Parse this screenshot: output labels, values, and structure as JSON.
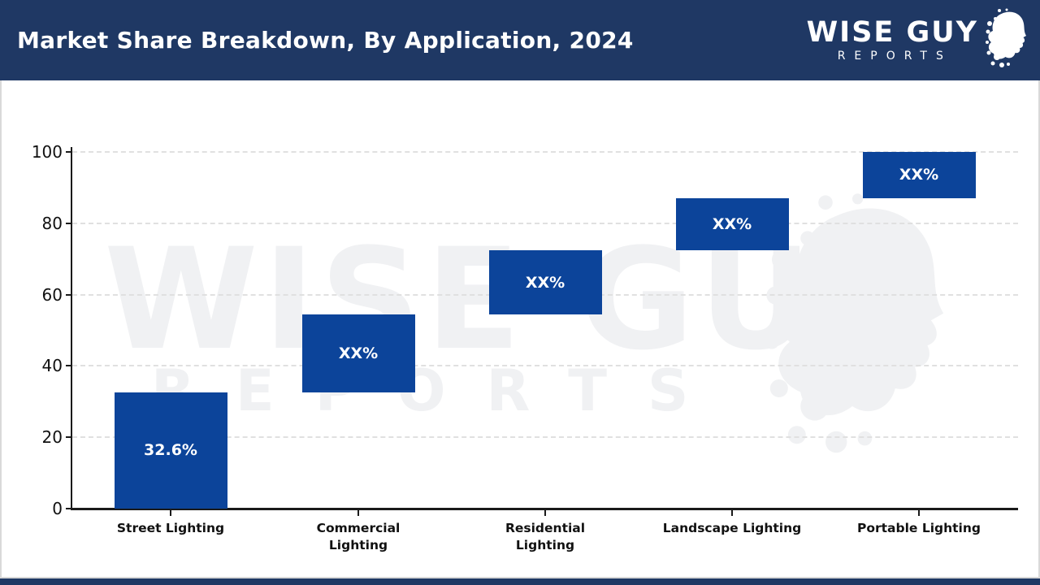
{
  "header": {
    "title": "Market Share Breakdown, By Application, 2024",
    "logo": {
      "line1": "WISE GUY",
      "line2": "REPORTS"
    }
  },
  "watermark": {
    "line1": "WISE GUY",
    "line2": "REPORTS"
  },
  "colors": {
    "header_bg": "#1f3864",
    "footer_bg": "#1f3864",
    "bar": "#0c449a",
    "bar_label": "#ffffff",
    "axis": "#1a1a1a",
    "grid": "#e0e0e0",
    "watermark": "#f0f1f3"
  },
  "chart_data": {
    "type": "bar",
    "subtype": "waterfall",
    "title": "Market Share Breakdown, By Application, 2024",
    "categories": [
      "Street Lighting",
      "Commercial\nLighting",
      "Residential\nLighting",
      "Landscape Lighting",
      "Portable Lighting"
    ],
    "segments": [
      {
        "category": "Street Lighting",
        "start": 0,
        "end": 32.6,
        "label": "32.6%"
      },
      {
        "category": "Commercial Lighting",
        "start": 32.6,
        "end": 54.4,
        "label": "XX%"
      },
      {
        "category": "Residential Lighting",
        "start": 54.4,
        "end": 72.4,
        "label": "XX%"
      },
      {
        "category": "Landscape Lighting",
        "start": 72.4,
        "end": 87.1,
        "label": "XX%"
      },
      {
        "category": "Portable Lighting",
        "start": 87.1,
        "end": 100,
        "label": "XX%"
      }
    ],
    "xlabel": "",
    "ylabel": "",
    "ylim": [
      0,
      100
    ],
    "yticks": [
      0,
      20,
      40,
      60,
      80,
      100
    ],
    "grid": "horizontal-dashed",
    "legend": "none"
  }
}
